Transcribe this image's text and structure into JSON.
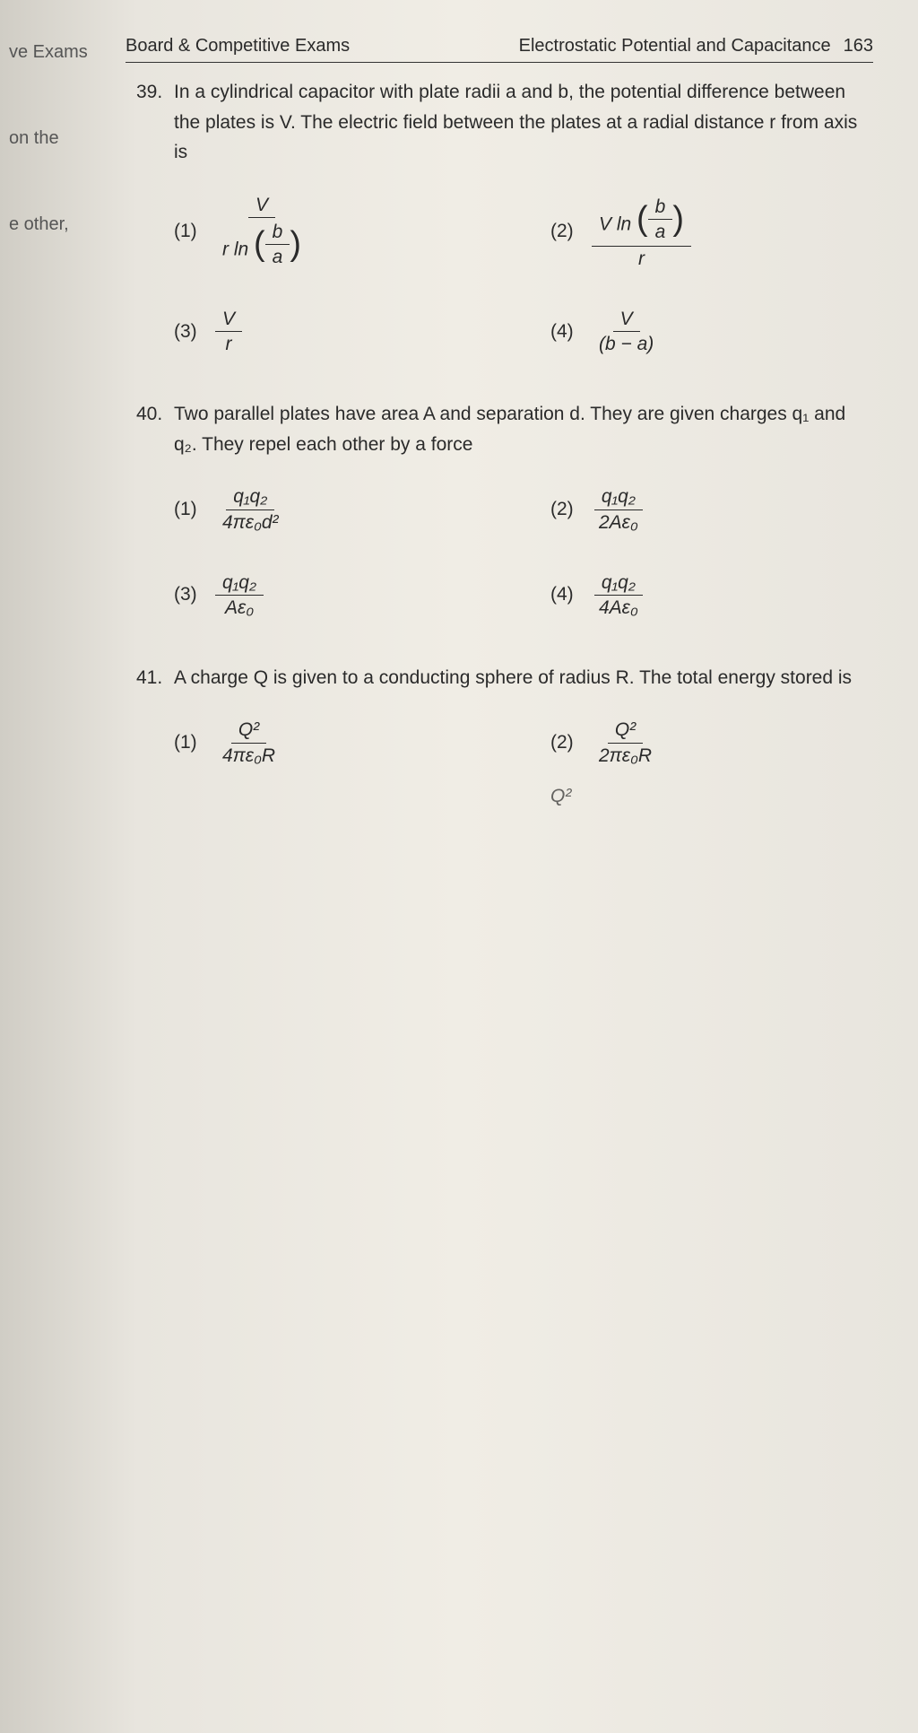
{
  "side": {
    "label1": "ve Exams",
    "label2": "on the",
    "label3": "e other,"
  },
  "header": {
    "left": "Board & Competitive Exams",
    "right_title": "Electrostatic Potential and Capacitance",
    "right_page": "163"
  },
  "q39": {
    "num": "39.",
    "text": "In a cylindrical capacitor with plate radii a and b, the potential difference between the plates is V. The electric field between the plates at a radial distance r from axis is",
    "opt1_num": "(1)",
    "opt1_num_top": "V",
    "opt1_den_left": "r ln",
    "opt1_den_frac_top": "b",
    "opt1_den_frac_bot": "a",
    "opt2_num": "(2)",
    "opt2_num_left": "V ln",
    "opt2_num_frac_top": "b",
    "opt2_num_frac_bot": "a",
    "opt2_den": "r",
    "opt3_num": "(3)",
    "opt3_top": "V",
    "opt3_bot": "r",
    "opt4_num": "(4)",
    "opt4_top": "V",
    "opt4_bot": "(b − a)"
  },
  "q40": {
    "num": "40.",
    "text": "Two parallel plates have area A and separation d. They are given charges q₁ and q₂. They repel each other by a force",
    "opt1_num": "(1)",
    "opt1_top": "q₁q₂",
    "opt1_bot": "4πε₀d²",
    "opt2_num": "(2)",
    "opt2_top": "q₁q₂",
    "opt2_bot": "2Aε₀",
    "opt3_num": "(3)",
    "opt3_top": "q₁q₂",
    "opt3_bot": "Aε₀",
    "opt4_num": "(4)",
    "opt4_top": "q₁q₂",
    "opt4_bot": "4Aε₀"
  },
  "q41": {
    "num": "41.",
    "text": "A charge Q is given to a conducting sphere of radius R. The total energy stored is",
    "opt1_num": "(1)",
    "opt1_top": "Q²",
    "opt1_bot": "4πε₀R",
    "opt2_num": "(2)",
    "opt2_top": "Q²",
    "opt2_bot": "2πε₀R",
    "opt_extra": "Q²"
  }
}
